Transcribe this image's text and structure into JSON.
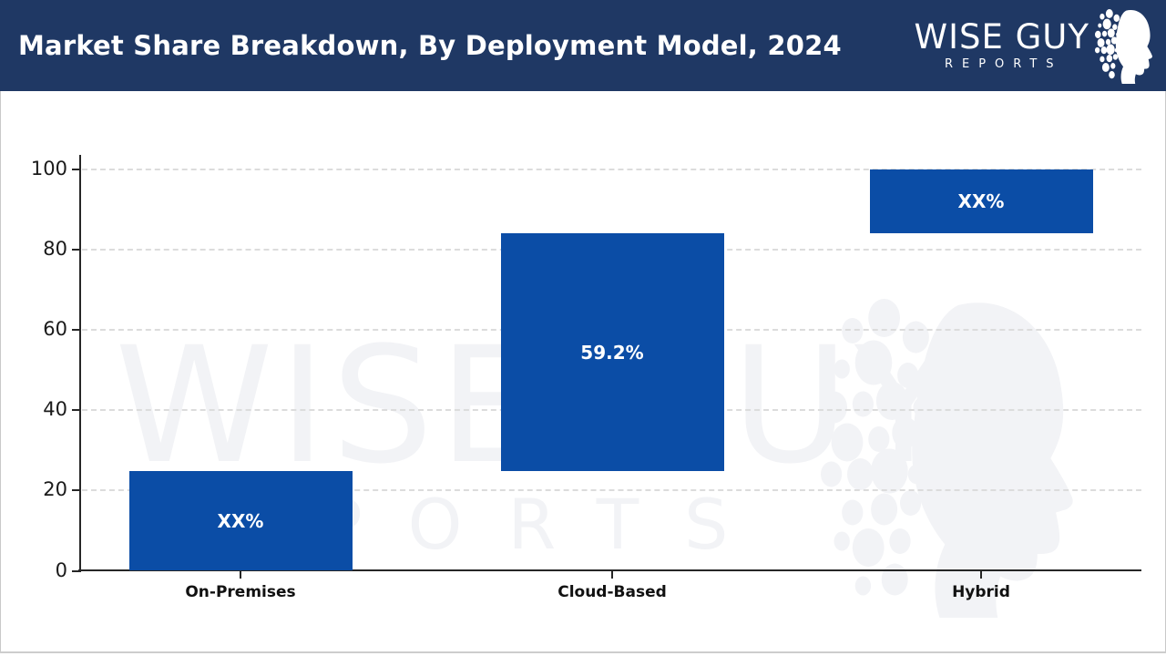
{
  "header": {
    "title": "Market Share Breakdown, By Deployment Model, 2024"
  },
  "logo": {
    "name": "WISE GUY",
    "subtitle": "REPORTS"
  },
  "watermark": {
    "big_text": "WISE GUY",
    "reports_text": "REPORTS"
  },
  "chart_data": {
    "type": "bar",
    "subtype": "floating_stacked_percentage",
    "title": "Market Share Breakdown, By Deployment Model, 2024",
    "categories": [
      "On-Premises",
      "Cloud-Based",
      "Hybrid"
    ],
    "segments": [
      {
        "category": "On-Premises",
        "start": 0,
        "end": 24.8,
        "label": "XX%"
      },
      {
        "category": "Cloud-Based",
        "start": 24.8,
        "end": 84.0,
        "label": "59.2%"
      },
      {
        "category": "Hybrid",
        "start": 84.0,
        "end": 100.0,
        "label": "XX%"
      }
    ],
    "xlabel": "",
    "ylabel": "",
    "ylim": [
      0,
      100
    ],
    "yticks": [
      0,
      20,
      40,
      60,
      80,
      100
    ],
    "grid": "horizontal-dashed",
    "legend": "none",
    "bar_color": "#0b4da6",
    "bar_label_color": "#ffffff",
    "axis_color": "#262626",
    "gridline_color": "#dcdcdc",
    "header_color": "#1f3864"
  }
}
